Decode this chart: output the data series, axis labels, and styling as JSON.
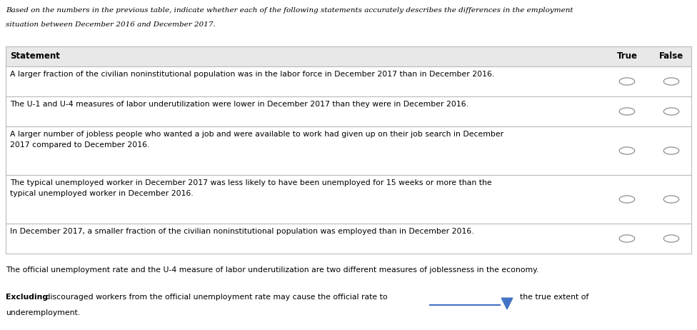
{
  "intro_text_line1": "Based on the numbers in the previous table, indicate whether each of the following statements accurately describes the differences in the employment",
  "intro_text_line2": "situation between December 2016 and December 2017.",
  "header": [
    "Statement",
    "True",
    "False"
  ],
  "rows": [
    "A larger fraction of the civilian noninstitutional population was in the labor force in December 2017 than in December 2016.",
    "The U-1 and U-4 measures of labor underutilization were lower in December 2017 than they were in December 2016.",
    "A larger number of jobless people who wanted a job and were available to work had given up on their job search in December\n2017 compared to December 2016.",
    "The typical unemployed worker in December 2017 was less likely to have been unemployed for 15 weeks or more than the\ntypical unemployed worker in December 2016.",
    "In December 2017, a smaller fraction of the civilian noninstitutional population was employed than in December 2016."
  ],
  "footer_text": "The official unemployment rate and the U-4 measure of labor underutilization are two different measures of joblessness in the economy.",
  "bottom_bold": "Excluding",
  "bottom_text": " discouraged workers from the official unemployment rate may cause the official rate to ",
  "bottom_text2": "the true extent of",
  "bottom_text3": "underemployment.",
  "bg_color": "#ffffff",
  "table_border_color": "#bbbbbb",
  "header_bg": "#e8e8e8",
  "text_color": "#000000",
  "circle_color": "#999999",
  "dropdown_line_color": "#4472c4",
  "dropdown_arrow_color": "#4472c4"
}
